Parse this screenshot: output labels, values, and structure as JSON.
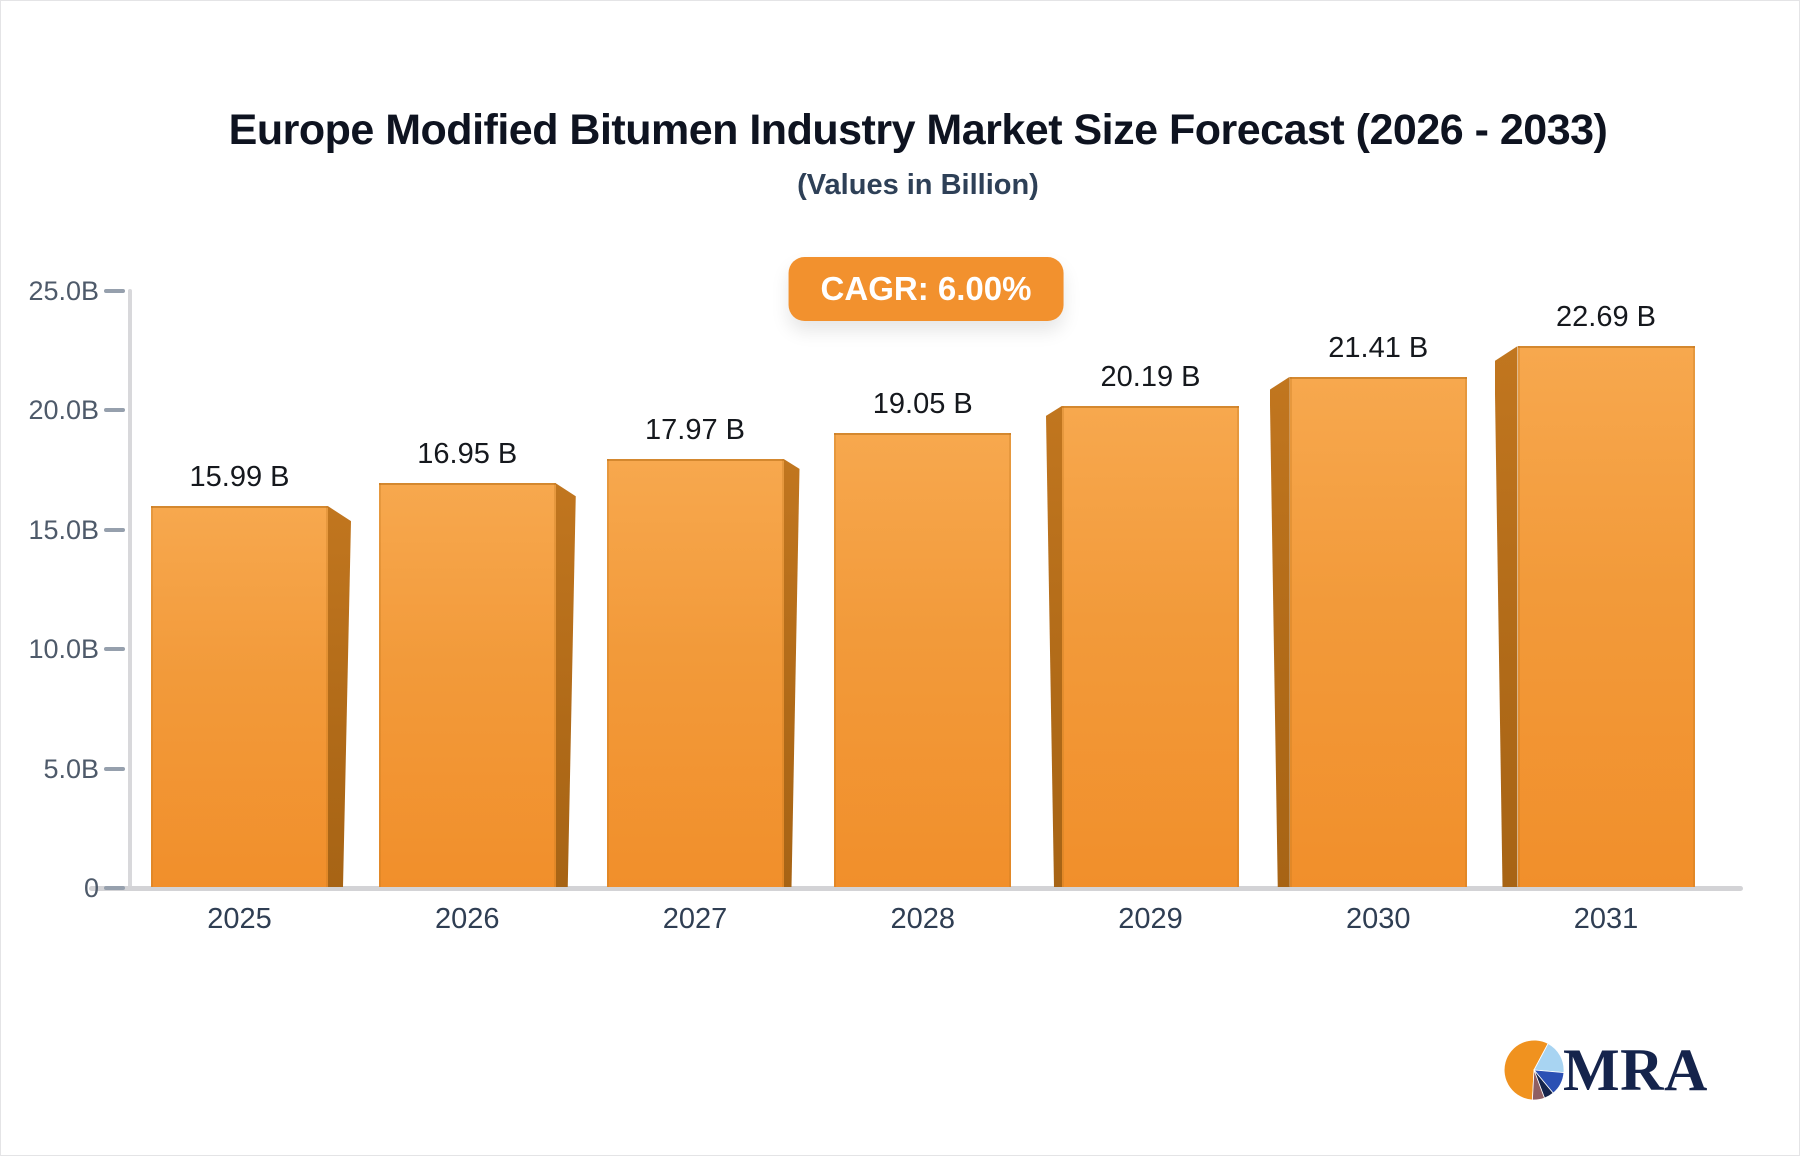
{
  "header": {
    "title": "Europe Modified Bitumen Industry Market Size Forecast (2026 - 2033)",
    "subtitle": "(Values in Billion)",
    "cagr_badge_label": "CAGR: 6.00%"
  },
  "chart_data": {
    "type": "bar",
    "title": "Europe Modified Bitumen Industry Market Size Forecast (2026 - 2033)",
    "subtitle": "(Values in Billion)",
    "annotation": "CAGR: 6.00%",
    "categories": [
      "2025",
      "2026",
      "2027",
      "2028",
      "2029",
      "2030",
      "2031"
    ],
    "values": [
      15.99,
      16.95,
      17.97,
      19.05,
      20.19,
      21.41,
      22.69
    ],
    "value_labels": [
      "15.99 B",
      "16.95 B",
      "17.97 B",
      "19.05 B",
      "20.19 B",
      "21.41 B",
      "22.69 B"
    ],
    "y_tick_labels": [
      "25.0B",
      "20.0B",
      "15.0B",
      "10.0B",
      "5.0B",
      "0"
    ],
    "ylim": [
      0,
      25
    ],
    "unit": "Billion",
    "grid": "off",
    "legend": "none",
    "bar_color_top": "#f7a84e",
    "bar_color_bottom": "#f18f2b",
    "bar_side_color": "#b06a18",
    "badge_color": "#f2912e",
    "axis_color": "#d3d3d6"
  },
  "branding": {
    "logo_text": "MRA",
    "logo_pie_colors": [
      "#f0921f",
      "#a8d4f2",
      "#2b50b4",
      "#15244c",
      "#8f5f63"
    ]
  }
}
